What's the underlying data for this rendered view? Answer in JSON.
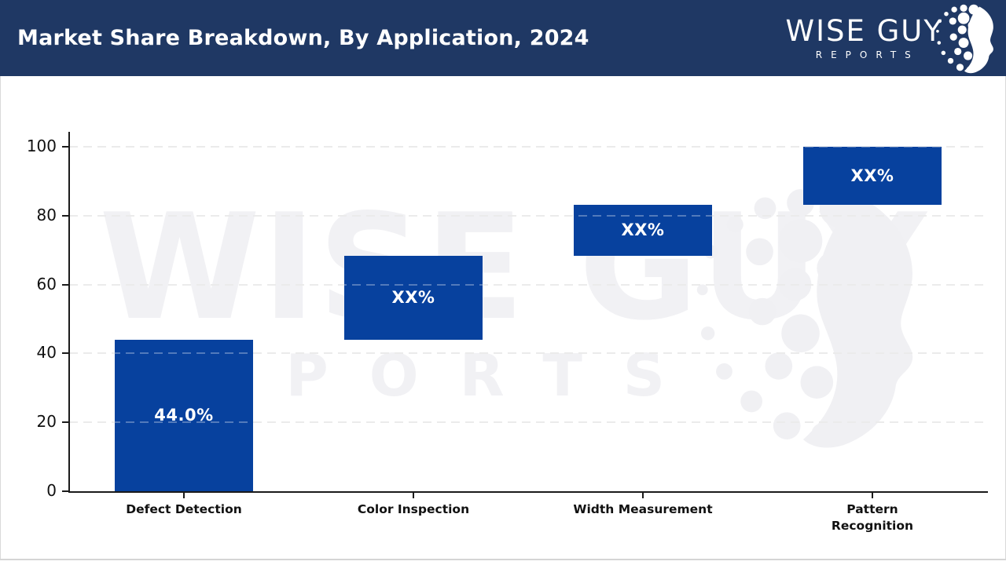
{
  "header": {
    "title": "Market Share Breakdown, By Application, 2024",
    "logo": {
      "line1": "WISE GUY",
      "line2": "REPORTS"
    }
  },
  "watermark": {
    "line1": "WISE GUY",
    "line2": "REPORTS"
  },
  "colors": {
    "header_bg": "#1f3864",
    "bar": "#07419e",
    "bar_label": "#ffffff",
    "grid": "#e3e3e3",
    "axis": "#1a1a1a",
    "watermark": "#f1f1f4"
  },
  "chart_data": {
    "type": "bar",
    "variant": "waterfall",
    "title": "Market Share Breakdown, By Application, 2024",
    "categories": [
      "Defect Detection",
      "Color Inspection",
      "Width Measurement",
      "Pattern Recognition"
    ],
    "category_lines": [
      [
        "Defect Detection"
      ],
      [
        "Color Inspection"
      ],
      [
        "Width Measurement"
      ],
      [
        "Pattern",
        "Recognition"
      ]
    ],
    "bars": [
      {
        "category": "Defect Detection",
        "start": 0,
        "end": 44,
        "label": "44.0%"
      },
      {
        "category": "Color Inspection",
        "start": 44,
        "end": 68.4,
        "label": "XX%"
      },
      {
        "category": "Width Measurement",
        "start": 68.4,
        "end": 83.2,
        "label": "XX%"
      },
      {
        "category": "Pattern Recognition",
        "start": 83.2,
        "end": 100,
        "label": "XX%"
      }
    ],
    "yticks": [
      0,
      20,
      40,
      60,
      80,
      100
    ],
    "ylim": [
      0,
      100
    ],
    "xlabel": "",
    "ylabel": "",
    "grid": "horizontal-dashed",
    "legend": "none"
  }
}
